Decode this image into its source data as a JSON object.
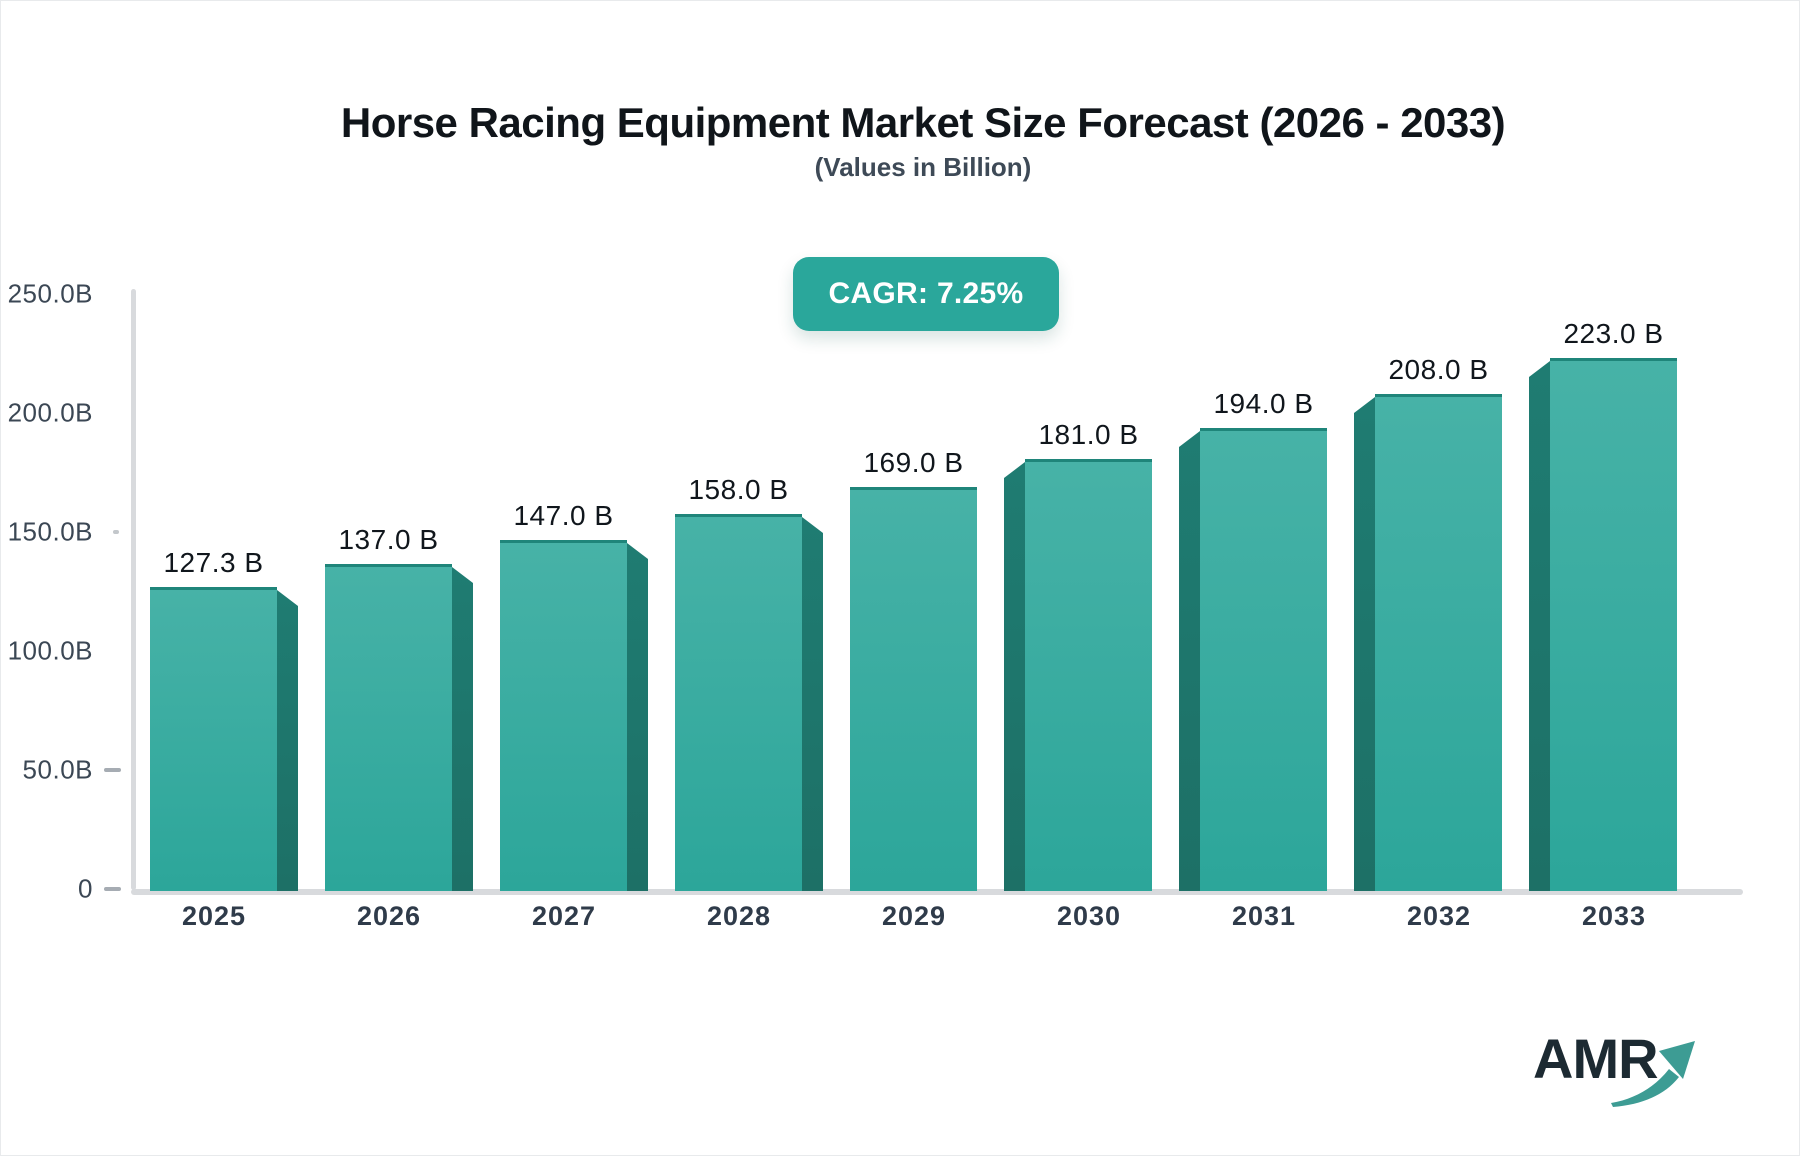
{
  "header": {
    "title": "Horse Racing Equipment Market Size Forecast (2026 - 2033)",
    "subtitle": "(Values in Billion)",
    "cagr_badge": "CAGR: 7.25%"
  },
  "chart_data": {
    "type": "bar",
    "title": "Horse Racing Equipment Market Size Forecast (2026 - 2033)",
    "subtitle": "(Values in Billion)",
    "annotation": "CAGR: 7.25%",
    "categories": [
      "2025",
      "2026",
      "2027",
      "2028",
      "2029",
      "2030",
      "2031",
      "2032",
      "2033"
    ],
    "values": [
      127.3,
      137.0,
      147.0,
      158.0,
      169.0,
      181.0,
      194.0,
      208.0,
      223.0
    ],
    "value_labels": [
      "127.3 B",
      "137.0 B",
      "147.0 B",
      "158.0 B",
      "169.0 B",
      "181.0 B",
      "194.0 B",
      "208.0 B",
      "223.0 B"
    ],
    "unit": "Billion",
    "xlabel": "",
    "ylabel": "",
    "ylim": [
      0,
      250
    ],
    "y_ticks": [
      {
        "label": "250.0B",
        "mark": "none"
      },
      {
        "label": "200.0B",
        "mark": "none"
      },
      {
        "label": "150.0B",
        "mark": "dot"
      },
      {
        "label": "100.0B",
        "mark": "none"
      },
      {
        "label": "50.0B",
        "mark": "dash"
      },
      {
        "label": "0",
        "mark": "dash"
      }
    ],
    "grid": false,
    "legend": "none",
    "colors": {
      "bar_face_top": "#47b2a7",
      "bar_face_bottom": "#2ca69a",
      "bar_top_edge": "#1f857a",
      "bar_side": "#1f7c72",
      "axis_line": "#d8dadd",
      "badge_bg": "#2aa79b",
      "badge_text": "#ffffff",
      "title_text": "#10151a",
      "subtitle_text": "#3e4a57",
      "tick_text": "#3b4754",
      "category_text": "#2f3b4a",
      "value_text": "#10161c"
    }
  },
  "footer": {
    "logo_text": "AMR"
  }
}
